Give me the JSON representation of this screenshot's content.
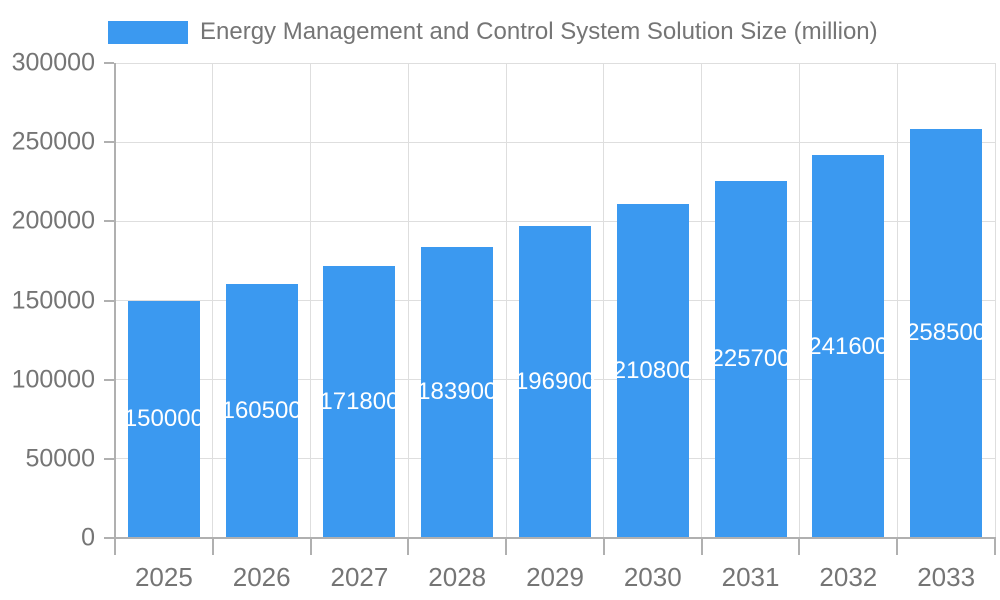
{
  "colors": {
    "bar": "#3B99F0",
    "axis_text": "#757575",
    "bar_label_text": "#FFFFFF",
    "gridline": "#DEDEDE",
    "axis_line": "#B0B0B0",
    "background": "#FFFFFF"
  },
  "legend": {
    "entries": [
      "Energy Management and Control System Solution Size (million)"
    ]
  },
  "chart_data": {
    "type": "bar",
    "title": "Energy Management and Control System Solution Size (million)",
    "categories": [
      "2025",
      "2026",
      "2027",
      "2028",
      "2029",
      "2030",
      "2031",
      "2032",
      "2033"
    ],
    "values": [
      150000,
      160500,
      171800,
      183900,
      196900,
      210800,
      225700,
      241600,
      258500
    ],
    "series": [
      {
        "name": "Energy Management and Control System Solution Size (million)",
        "values": [
          150000,
          160500,
          171800,
          183900,
          196900,
          210800,
          225700,
          241600,
          258500
        ]
      }
    ],
    "xlabel": "",
    "ylabel": "",
    "ylim": [
      0,
      300000
    ],
    "yticks": [
      0,
      50000,
      100000,
      150000,
      200000,
      250000,
      300000
    ],
    "bar_value_labels": true,
    "grid": true,
    "legend_position": "top"
  }
}
